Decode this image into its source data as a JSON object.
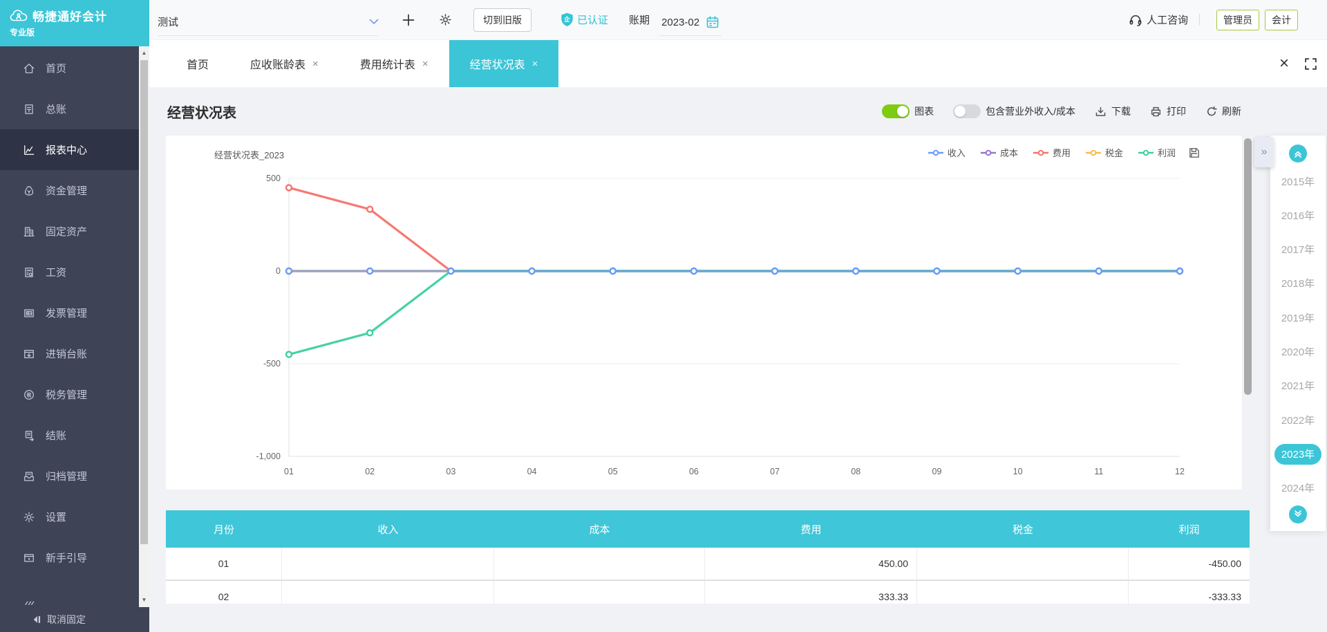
{
  "brand": {
    "name": "畅捷通好会计",
    "edition": "专业版"
  },
  "sidebar": {
    "items": [
      {
        "id": "home",
        "label": "首页",
        "icon": "home-icon"
      },
      {
        "id": "general-ledger",
        "label": "总账",
        "icon": "ledger-icon"
      },
      {
        "id": "report-center",
        "label": "报表中心",
        "icon": "report-icon",
        "active": true
      },
      {
        "id": "funds",
        "label": "资金管理",
        "icon": "money-bag-icon"
      },
      {
        "id": "fixed-assets",
        "label": "固定资产",
        "icon": "building-icon"
      },
      {
        "id": "payroll",
        "label": "工资",
        "icon": "payroll-icon"
      },
      {
        "id": "invoices",
        "label": "发票管理",
        "icon": "invoice-icon"
      },
      {
        "id": "inventory",
        "label": "进销台账",
        "icon": "inventory-icon"
      },
      {
        "id": "tax",
        "label": "税务管理",
        "icon": "tax-icon"
      },
      {
        "id": "closing",
        "label": "结账",
        "icon": "closing-icon"
      },
      {
        "id": "archive",
        "label": "归档管理",
        "icon": "archive-icon"
      },
      {
        "id": "settings",
        "label": "设置",
        "icon": "settings-icon"
      },
      {
        "id": "guide",
        "label": "新手引导",
        "icon": "guide-icon"
      },
      {
        "id": "clipped",
        "label": "",
        "icon": "clipped-icon",
        "clipped": true
      }
    ],
    "unpin_label": "取消固定"
  },
  "topbar": {
    "account_name": "测试",
    "switch_old_label": "切到旧版",
    "certified_glyph": "企",
    "certified_label": "已认证",
    "period_label": "账期",
    "period_value": "2023-02",
    "support_label": "人工咨询",
    "role_badges": [
      "管理员",
      "会计"
    ]
  },
  "tabs": {
    "items": [
      {
        "id": "home",
        "label": "首页",
        "closable": false
      },
      {
        "id": "receivable-aging",
        "label": "应收账龄表",
        "closable": true
      },
      {
        "id": "expense-stats",
        "label": "费用统计表",
        "closable": true
      },
      {
        "id": "operating-status",
        "label": "经营状况表",
        "closable": true,
        "active": true
      }
    ]
  },
  "page": {
    "title": "经营状况表",
    "chart_toggle_label": "图表",
    "chart_toggle_on": true,
    "include_toggle_label": "包含营业外收入/成本",
    "include_toggle_on": false,
    "download_label": "下载",
    "print_label": "打印",
    "refresh_label": "刷新"
  },
  "chart_data": {
    "type": "line",
    "title": "经营状况表_2023",
    "x": [
      "01",
      "02",
      "03",
      "04",
      "05",
      "06",
      "07",
      "08",
      "09",
      "10",
      "11",
      "12"
    ],
    "series": [
      {
        "name": "收入",
        "color": "#6a9bf9",
        "values": [
          0,
          0,
          0,
          0,
          0,
          0,
          0,
          0,
          0,
          0,
          0,
          0
        ]
      },
      {
        "name": "成本",
        "color": "#9674cf",
        "values": [
          0,
          0,
          0,
          0,
          0,
          0,
          0,
          0,
          0,
          0,
          0,
          0
        ]
      },
      {
        "name": "费用",
        "color": "#f6726b",
        "values": [
          450,
          333.33,
          0,
          0,
          0,
          0,
          0,
          0,
          0,
          0,
          0,
          0
        ]
      },
      {
        "name": "税金",
        "color": "#f7bc4c",
        "values": [
          0,
          0,
          0,
          0,
          0,
          0,
          0,
          0,
          0,
          0,
          0,
          0
        ]
      },
      {
        "name": "利润",
        "color": "#3bd0a0",
        "values": [
          -450,
          -333.33,
          0,
          0,
          0,
          0,
          0,
          0,
          0,
          0,
          0,
          0
        ]
      }
    ],
    "ylim": [
      -1000,
      500
    ],
    "yticks": [
      {
        "label": "500",
        "value": 500
      },
      {
        "label": "0",
        "value": 0
      },
      {
        "label": "-500",
        "value": -500
      },
      {
        "label": "-1,000",
        "value": -1000
      }
    ],
    "grid": true,
    "legend_position": "top-right"
  },
  "table": {
    "columns": [
      "月份",
      "收入",
      "成本",
      "费用",
      "税金",
      "利润"
    ],
    "rows": [
      [
        "01",
        "",
        "",
        "450.00",
        "",
        "-450.00"
      ],
      [
        "02",
        "",
        "",
        "333.33",
        "",
        "-333.33"
      ]
    ]
  },
  "year_panel": {
    "years": [
      "2015年",
      "2016年",
      "2017年",
      "2018年",
      "2019年",
      "2020年",
      "2021年",
      "2022年",
      "2023年",
      "2024年"
    ],
    "active": "2023年"
  },
  "colors": {
    "accent": "#3bc5d7",
    "toggle_on": "#7fcb12",
    "role_badge_border": "#a6c83d",
    "sidebar_bg": "#3e4356",
    "sidebar_active_bg": "#2e3346",
    "table_header_bg": "#3fc6d8"
  }
}
